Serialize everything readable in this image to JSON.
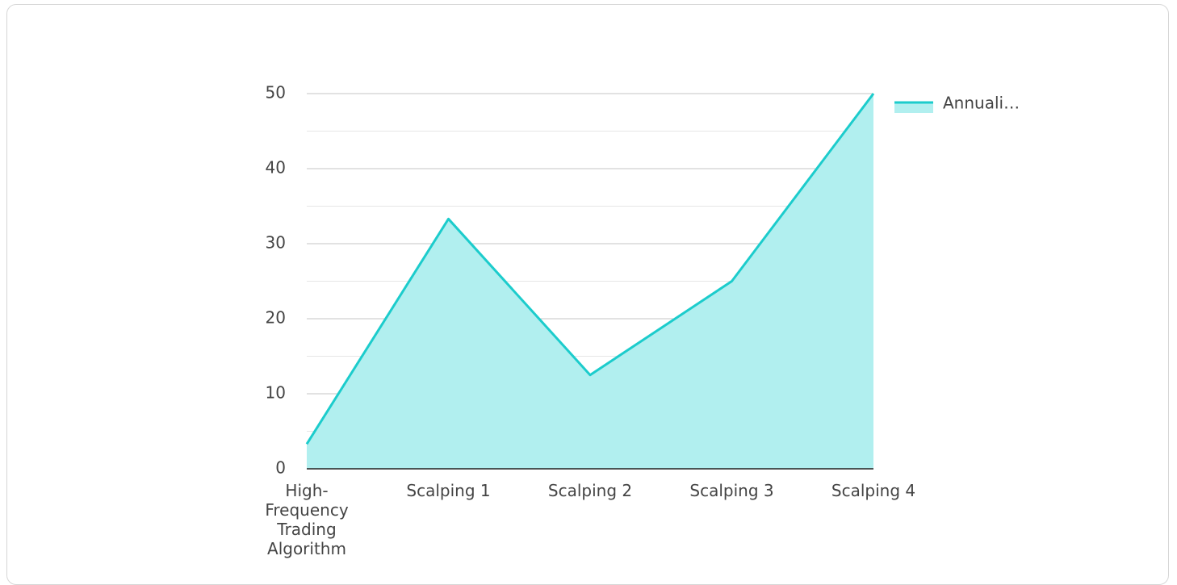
{
  "chart_data": {
    "type": "area",
    "categories": [
      "High-Frequency Trading Algorithm",
      "Scalping 1",
      "Scalping 2",
      "Scalping 3",
      "Scalping 4"
    ],
    "series": [
      {
        "name": "Annuali…",
        "color": "#1ccccc",
        "fill": "#b1efef",
        "values": [
          3.3,
          33.3,
          12.5,
          25,
          50
        ]
      }
    ],
    "ylim": [
      0,
      50
    ],
    "yticks": [
      0,
      10,
      20,
      30,
      40,
      50
    ],
    "minor_yticks": [
      5,
      15,
      25,
      35,
      45
    ],
    "grid": true,
    "legend": "right"
  }
}
